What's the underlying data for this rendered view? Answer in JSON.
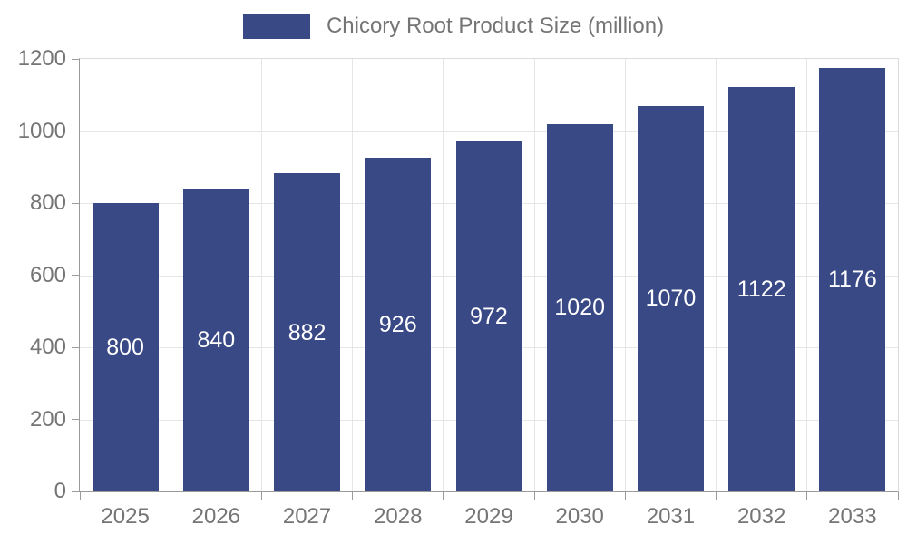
{
  "chart_data": {
    "type": "bar",
    "title": "",
    "legend": "Chicory Root Product Size (million)",
    "legend_position": "top",
    "categories": [
      "2025",
      "2026",
      "2027",
      "2028",
      "2029",
      "2030",
      "2031",
      "2032",
      "2033"
    ],
    "series": [
      {
        "name": "Chicory Root Product Size (million)",
        "values": [
          800,
          840,
          882,
          926,
          972,
          1020,
          1070,
          1122,
          1176
        ]
      }
    ],
    "xlabel": "",
    "ylabel": "",
    "ylim": [
      0,
      1200
    ],
    "ytick_step": 200,
    "yticks": [
      0,
      200,
      400,
      600,
      800,
      1000,
      1200
    ],
    "grid": true,
    "bar_color": "#394986",
    "value_label_color": "#ffffff",
    "text_color": "#757575",
    "grid_color": "#e6e6e6",
    "axis_line_color": "#9b9b9b",
    "frame_color": "#dcdcdc"
  }
}
